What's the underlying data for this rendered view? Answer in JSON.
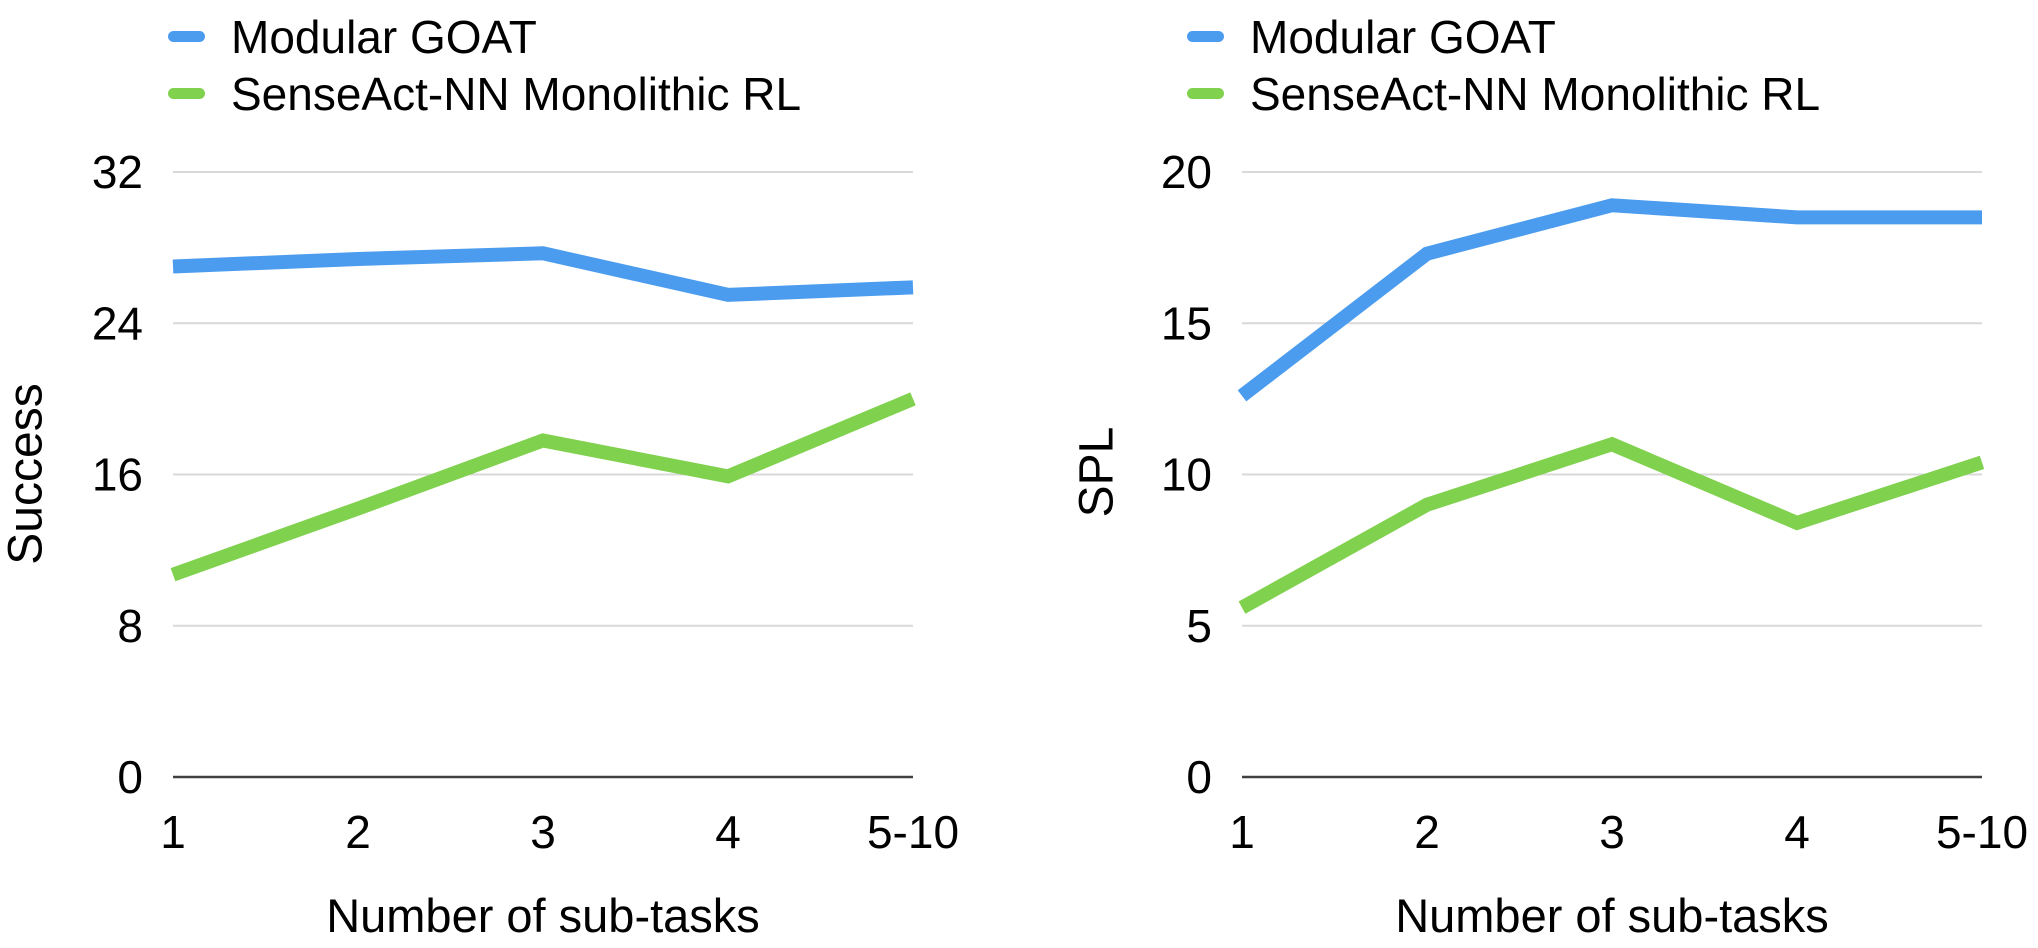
{
  "chart_data": [
    {
      "type": "line",
      "title": "",
      "ylabel": "Success",
      "xlabel": "Number of sub-tasks",
      "categories": [
        "1",
        "2",
        "3",
        "4",
        "5-10"
      ],
      "yticks": [
        0,
        8,
        16,
        24,
        32
      ],
      "ylim": [
        0,
        32
      ],
      "grid": true,
      "legend_position": "top-left",
      "series": [
        {
          "name": "Modular GOAT",
          "color": "#4b9cee",
          "values": [
            27.0,
            27.4,
            27.7,
            25.5,
            25.9
          ]
        },
        {
          "name": "SenseAct-NN Monolithic RL",
          "color": "#80d14e",
          "values": [
            10.7,
            14.2,
            17.8,
            15.9,
            20.0
          ]
        }
      ]
    },
    {
      "type": "line",
      "title": "",
      "ylabel": "SPL",
      "xlabel": "Number of sub-tasks",
      "categories": [
        "1",
        "2",
        "3",
        "4",
        "5-10"
      ],
      "yticks": [
        0,
        5,
        10,
        15,
        20
      ],
      "ylim": [
        0,
        20
      ],
      "grid": true,
      "legend_position": "top-left",
      "series": [
        {
          "name": "Modular GOAT",
          "color": "#4b9cee",
          "values": [
            12.6,
            17.3,
            18.9,
            18.5,
            18.5
          ]
        },
        {
          "name": "SenseAct-NN Monolithic RL",
          "color": "#80d14e",
          "values": [
            5.6,
            9.0,
            11.0,
            8.4,
            10.4
          ]
        }
      ]
    }
  ],
  "style": {
    "grid_color": "#d9d9d9",
    "axis_color": "#404040",
    "line_width": 14
  }
}
